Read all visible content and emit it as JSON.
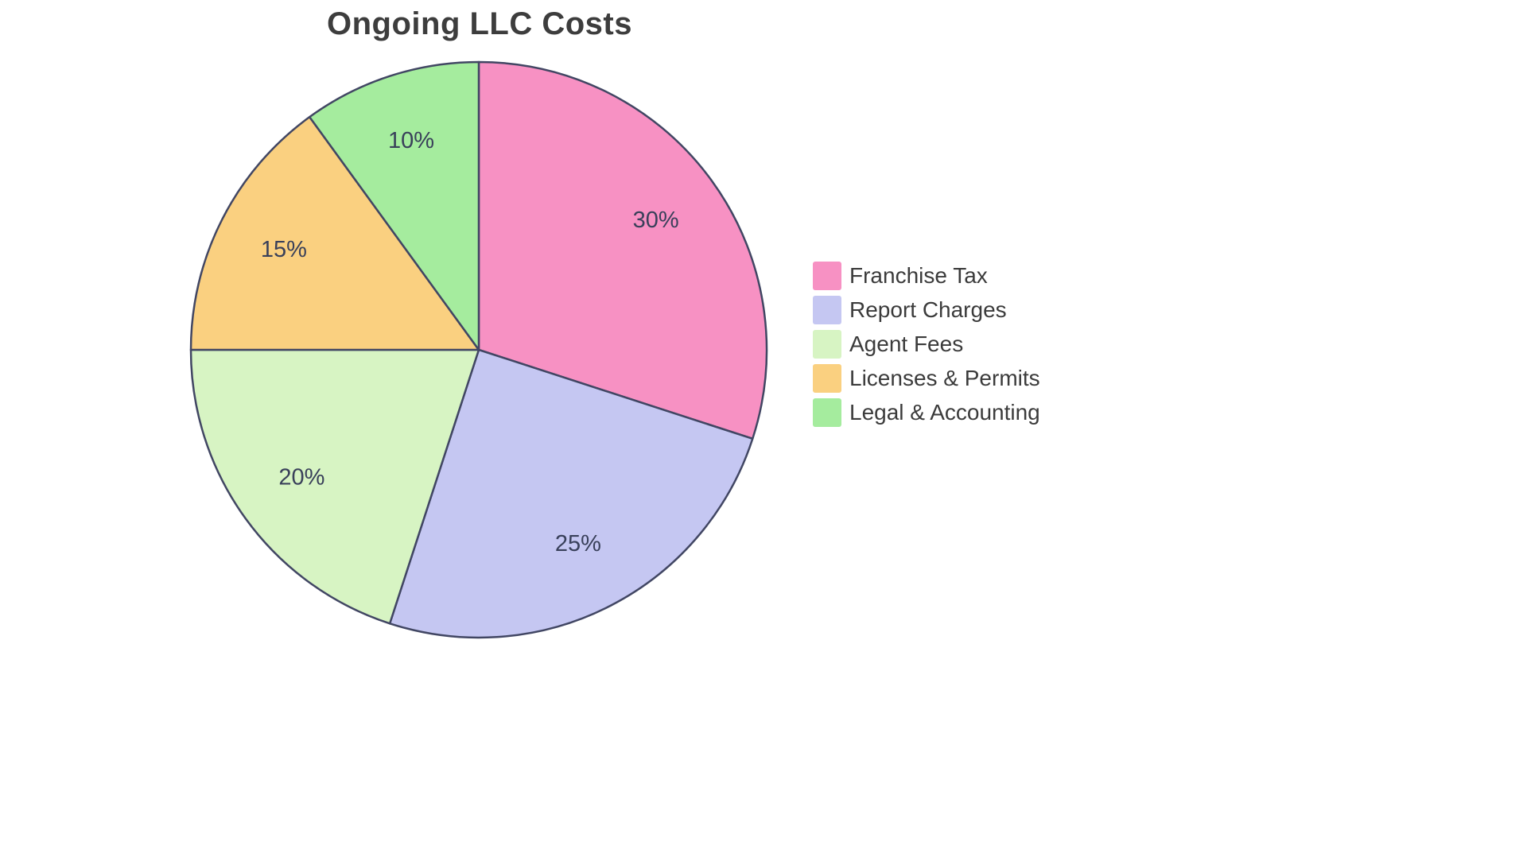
{
  "chart_data": {
    "type": "pie",
    "title": "Ongoing LLC Costs",
    "labels": [
      "Franchise Tax",
      "Report Charges",
      "Agent Fees",
      "Licenses & Permits",
      "Legal & Accounting"
    ],
    "values": [
      30,
      25,
      20,
      15,
      10
    ],
    "pct_labels": [
      "30%",
      "25%",
      "20%",
      "15%",
      "10%"
    ],
    "colors": [
      "#F791C3",
      "#C5C7F2",
      "#D7F4C3",
      "#FAD080",
      "#A5EC9E"
    ],
    "edge_color": "#414663",
    "start_angle_deg": -90,
    "direction": "clockwise",
    "legend_position": "right",
    "background": "#ffffff"
  }
}
